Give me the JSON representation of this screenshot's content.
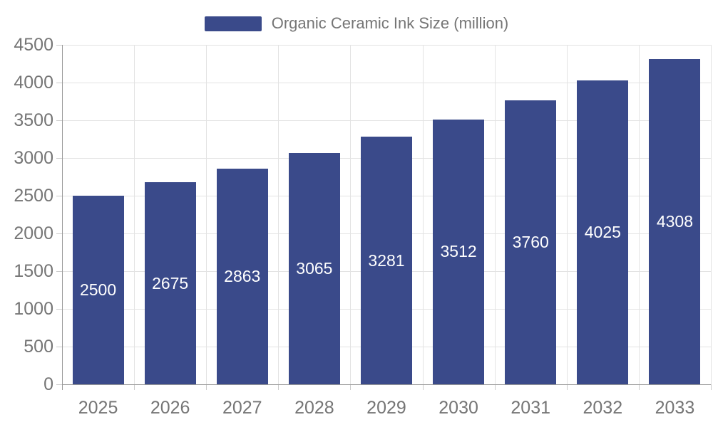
{
  "legend": {
    "label": "Organic Ceramic Ink Size (million)",
    "position": "top"
  },
  "chart_data": {
    "type": "bar",
    "title": "Organic Ceramic Ink Size (million)",
    "series_name": "Organic Ceramic Ink Size (million)",
    "categories": [
      "2025",
      "2026",
      "2027",
      "2028",
      "2029",
      "2030",
      "2031",
      "2032",
      "2033"
    ],
    "values": [
      2500,
      2675,
      2863,
      3065,
      3281,
      3512,
      3760,
      4025,
      4308
    ],
    "xlabel": "",
    "ylabel": "",
    "ylim": [
      0,
      4500
    ],
    "ytick_step": 500,
    "yticks": [
      0,
      500,
      1000,
      1500,
      2000,
      2500,
      3000,
      3500,
      4000,
      4500
    ],
    "grid": true,
    "legend_position": "top",
    "colors": {
      "bar": "#3A4A8A",
      "value_label": "#ffffff",
      "axis_label": "#757575",
      "gridline": "#e3e3e3",
      "axis_line": "#999999",
      "tick": "#cccccc",
      "background": "#ffffff"
    }
  }
}
